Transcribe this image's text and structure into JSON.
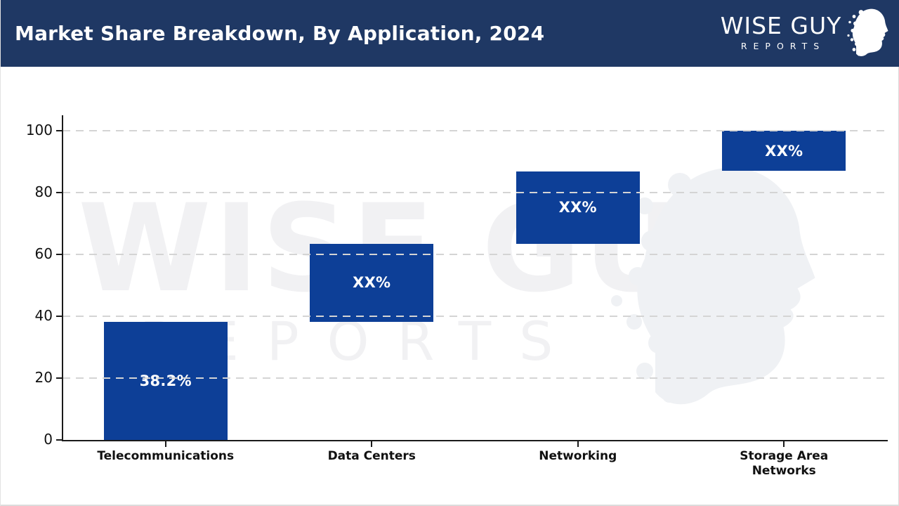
{
  "header": {
    "title": "Market Share Breakdown, By Application, 2024",
    "logo": {
      "line1": "WISE GUY",
      "line2": "REPORTS"
    }
  },
  "watermark": {
    "line1": "WISE GUY",
    "line2": "REPORTS"
  },
  "icons": {
    "logo_head": "dotted-head-profile-icon",
    "watermark_head": "dotted-head-profile-watermark"
  },
  "colors": {
    "header_bg": "#1f3864",
    "bar_fill": "#0d3f97",
    "bar_label": "#ffffff",
    "gridline": "#d4d4d4",
    "axis": "#1a1a1a",
    "watermark": "#f1f1f3"
  },
  "chart_data": {
    "type": "bar",
    "subtype": "waterfall",
    "title": "Market Share Breakdown, By Application, 2024",
    "categories": [
      "Telecommunications",
      "Data Centers",
      "Networking",
      "Storage Area\nNetworks"
    ],
    "segments": [
      {
        "category": "Telecommunications",
        "start": 0,
        "end": 38.2,
        "value": 38.2,
        "label": "38.2%"
      },
      {
        "category": "Data Centers",
        "start": 38.2,
        "end": 63.5,
        "value": 25.3,
        "label": "XX%"
      },
      {
        "category": "Networking",
        "start": 63.5,
        "end": 86.8,
        "value": 23.3,
        "label": "XX%"
      },
      {
        "category": "Storage Area Networks",
        "start": 87.0,
        "end": 100,
        "value": 13.0,
        "label": "XX%"
      }
    ],
    "yticks": [
      0,
      20,
      40,
      60,
      80,
      100
    ],
    "ylim": [
      0,
      105
    ],
    "xlabel": "",
    "ylabel": "",
    "grid": "dashed-horizontal-over-bars",
    "legend": "none"
  }
}
